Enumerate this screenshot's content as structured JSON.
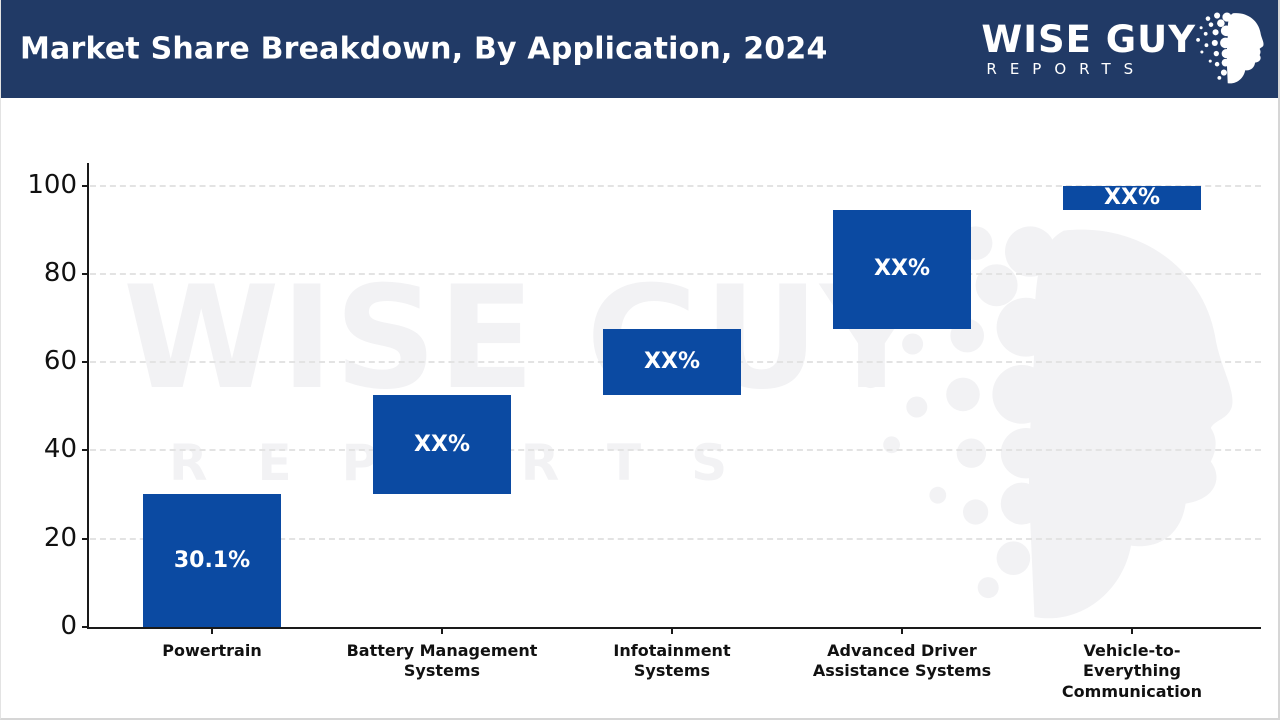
{
  "header": {
    "title": "Market Share Breakdown, By Application, 2024",
    "bg_color": "#213A66",
    "logo": {
      "wordmark": "WISE GUY",
      "subtitle": "REPORTS"
    }
  },
  "watermark": {
    "wordmark": "WISE GUY",
    "subtitle": "REPORTS"
  },
  "chart_data": {
    "type": "bar",
    "subtype": "waterfall (stacked market-share breakdown, totals 100%)",
    "title": "Market Share Breakdown, By Application, 2024",
    "categories": [
      "Powertrain",
      "Battery Management\nSystems",
      "Infotainment\nSystems",
      "Advanced Driver\nAssistance Systems",
      "Vehicle-to-\nEverything\nCommunication"
    ],
    "segments": [
      {
        "category": "Powertrain",
        "label": "30.1%",
        "start": 0,
        "end": 30.1
      },
      {
        "category": "Battery Management Systems",
        "label": "XX%",
        "start": 30.1,
        "end": 52.5
      },
      {
        "category": "Infotainment Systems",
        "label": "XX%",
        "start": 52.5,
        "end": 67.5
      },
      {
        "category": "Advanced Driver Assistance Systems",
        "label": "XX%",
        "start": 67.5,
        "end": 94.5
      },
      {
        "category": "Vehicle-to-Everything Communication",
        "label": "XX%",
        "start": 94.5,
        "end": 100
      }
    ],
    "yticks": [
      0,
      20,
      40,
      60,
      80,
      100
    ],
    "ylim": [
      0,
      105
    ],
    "xlabel": "",
    "ylabel": "",
    "legend": "none",
    "grid": {
      "horizontal": true,
      "style": "dashed",
      "color": "#e3e3e3"
    },
    "bar_color": "#0B4AA2",
    "bar_label_color": "#ffffff",
    "axis_color": "#1a1a1a"
  }
}
